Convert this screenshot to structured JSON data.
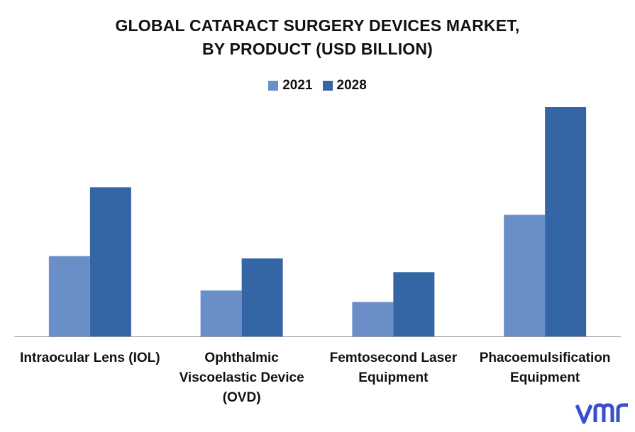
{
  "title_line1": "GLOBAL CATARACT SURGERY DEVICES MARKET,",
  "title_line2": "BY PRODUCT (USD BILLION)",
  "logo": {
    "text": "vmr"
  },
  "colors": {
    "2021": "#6a8fc8",
    "2028": "#3465a4",
    "axis": "#999999"
  },
  "chart_data": {
    "type": "bar",
    "categories": [
      "Intraocular Lens (IOL)",
      "Ophthalmic Viscoelastic Device (OVD)",
      "Femtosecond Laser Equipment",
      "Phacoemulsification Equipment"
    ],
    "series": [
      {
        "name": "2021",
        "values": [
          3.5,
          2.0,
          1.5,
          5.3
        ]
      },
      {
        "name": "2028",
        "values": [
          6.5,
          3.4,
          2.8,
          10.0
        ]
      }
    ],
    "ylim": [
      0,
      10
    ],
    "grid": false,
    "legend": "top-center",
    "xlabel": "",
    "ylabel": ""
  },
  "xlabels": [
    [
      "Intraocular Lens (IOL)"
    ],
    [
      "Ophthalmic",
      "Viscoelastic Device",
      "(OVD)"
    ],
    [
      "Femtosecond Laser",
      "Equipment"
    ],
    [
      "Phacoemulsification",
      "Equipment"
    ]
  ]
}
